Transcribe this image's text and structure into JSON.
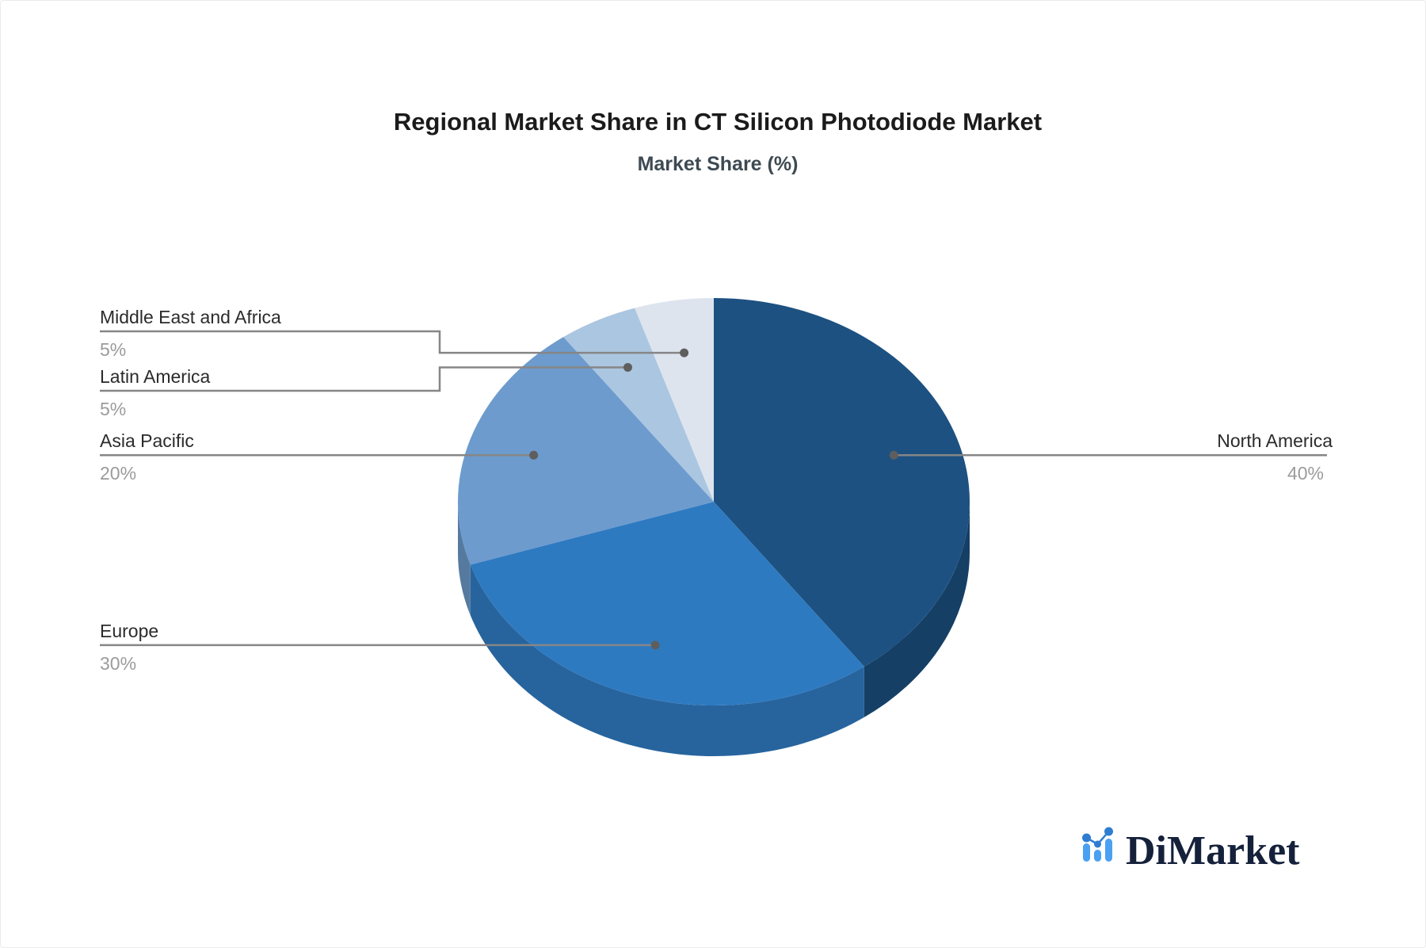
{
  "chart_data": {
    "type": "pie",
    "style": "3d",
    "title": "Regional Market Share in CT Silicon Photodiode Market",
    "subtitle": "Market Share (%)",
    "unit": "%",
    "direction": "clockwise",
    "start_angle_deg": 0,
    "legend_position": "callout-labels",
    "slices": [
      {
        "label": "North America",
        "value": 40,
        "pct_label": "40%",
        "color": "#1d5181",
        "side_color": "#163f66",
        "label_side": "right"
      },
      {
        "label": "Europe",
        "value": 30,
        "pct_label": "30%",
        "color": "#2e7ac1",
        "side_color": "#27649e",
        "label_side": "left"
      },
      {
        "label": "Asia Pacific",
        "value": 20,
        "pct_label": "20%",
        "color": "#6d9bcd",
        "side_color": "#56799f",
        "label_side": "left"
      },
      {
        "label": "Latin America",
        "value": 5,
        "pct_label": "5%",
        "color": "#abc6e1",
        "side_color": "#8aa9c9",
        "label_side": "left"
      },
      {
        "label": "Middle East and Africa",
        "value": 5,
        "pct_label": "5%",
        "color": "#dde4ee",
        "side_color": "#b9c4d4",
        "label_side": "left"
      }
    ]
  },
  "branding": {
    "logo_text": "DiMarket",
    "logo_bar_color": "#4aa0f2",
    "logo_accent_color": "#2f7dd1",
    "logo_text_color": "#15213b"
  },
  "colors": {
    "background": "#ffffff",
    "title": "#1b1b1b",
    "subtitle": "#3e4a52",
    "connector": "#868686",
    "dot": "#5e5e5e",
    "label_text": "#2b2b2b",
    "pct_text": "#9b9b9b"
  }
}
